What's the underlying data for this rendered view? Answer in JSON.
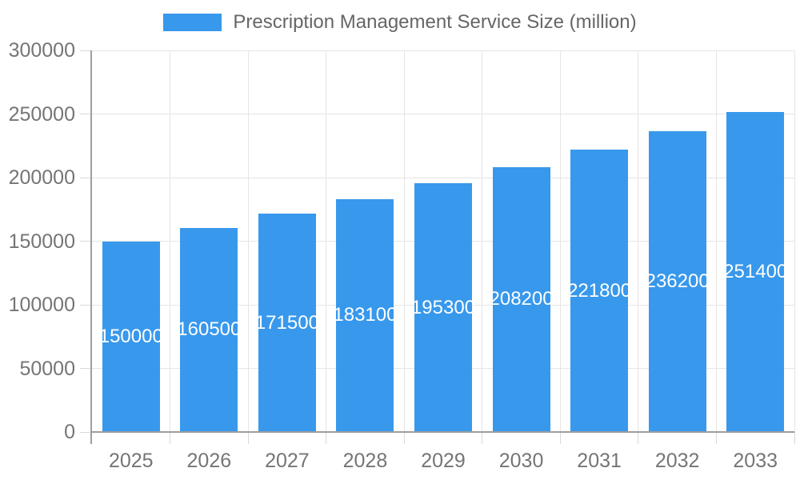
{
  "legend": {
    "label": "Prescription Management Service Size (million)"
  },
  "chart_data": {
    "type": "bar",
    "title": "Prescription Management Service Size (million)",
    "categories": [
      "2025",
      "2026",
      "2027",
      "2028",
      "2029",
      "2030",
      "2031",
      "2032",
      "2033"
    ],
    "values": [
      150000,
      160500,
      171500,
      183100,
      195300,
      208200,
      221800,
      236200,
      251400
    ],
    "bar_value_labels": [
      "150000",
      "160500",
      "171500",
      "183100",
      "195300",
      "208200",
      "221800",
      "236200",
      "251400"
    ],
    "xlabel": "",
    "ylabel": "",
    "ylim": [
      0,
      300000
    ],
    "y_ticks": [
      0,
      50000,
      100000,
      150000,
      200000,
      250000,
      300000
    ],
    "y_tick_labels": [
      "0",
      "50000",
      "100000",
      "150000",
      "200000",
      "250000",
      "300000"
    ],
    "grid": true,
    "legend_position": "top-center"
  },
  "colors": {
    "bar": "#3898ec",
    "bar_value_text": "#ffffff",
    "axis_text": "#757575",
    "title_text": "#666666",
    "grid_line": "#e5e5e5",
    "axis_line": "#9e9e9e",
    "tick_mark": "#d9d9d9",
    "background": "#ffffff"
  }
}
